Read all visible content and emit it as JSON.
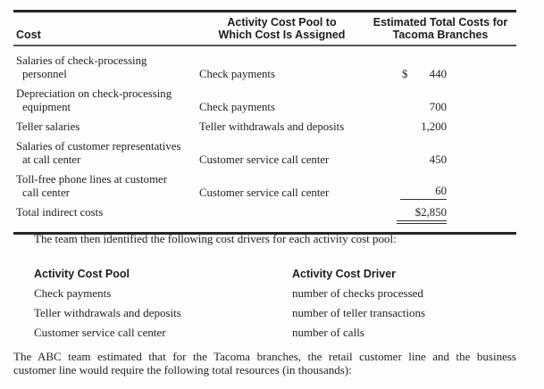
{
  "table1": {
    "headers": {
      "col1": "Cost",
      "col2_line1": "Activity Cost Pool to",
      "col2_line2": "Which Cost Is Assigned",
      "col3_line1": "Estimated Total Costs for",
      "col3_line2": "Tacoma Branches"
    },
    "rows": [
      {
        "cost_line1": "Salaries of check-processing",
        "cost_line2": "personnel",
        "pool": "Check payments",
        "currency": "$",
        "amount": "440"
      },
      {
        "cost_line1": "Depreciation on check-processing",
        "cost_line2": "equipment",
        "pool": "Check payments",
        "amount": "700"
      },
      {
        "cost_line1": "Teller salaries",
        "pool": "Teller withdrawals and deposits",
        "amount": "1,200"
      },
      {
        "cost_line1": "Salaries of customer representatives",
        "cost_line2": "at call center",
        "pool": "Customer service call center",
        "amount": "450"
      },
      {
        "cost_line1": "Toll-free phone lines at customer",
        "cost_line2": "call center",
        "pool": "Customer service call center",
        "amount": "60"
      },
      {
        "cost_line1": "Total indirect costs",
        "amount": "$2,850"
      }
    ]
  },
  "paragraph1": "The team then identified the following cost drivers for each activity cost pool:",
  "table2": {
    "headers": {
      "pool": "Activity Cost Pool",
      "driver": "Activity Cost Driver"
    },
    "rows": [
      {
        "pool": "Check payments",
        "driver": "number of checks processed"
      },
      {
        "pool": "Teller withdrawals and deposits",
        "driver": "number of teller transactions"
      },
      {
        "pool": "Customer service call center",
        "driver": "number of calls"
      }
    ]
  },
  "paragraph2": {
    "line1": "The ABC team estimated that for the Tacoma branches, the retail customer line and the business",
    "line2": "customer line would require the following total resources (in thousands):"
  },
  "colors": {
    "text": "#222226",
    "border_heavy": "#262626",
    "border_rule": "#55555a"
  }
}
